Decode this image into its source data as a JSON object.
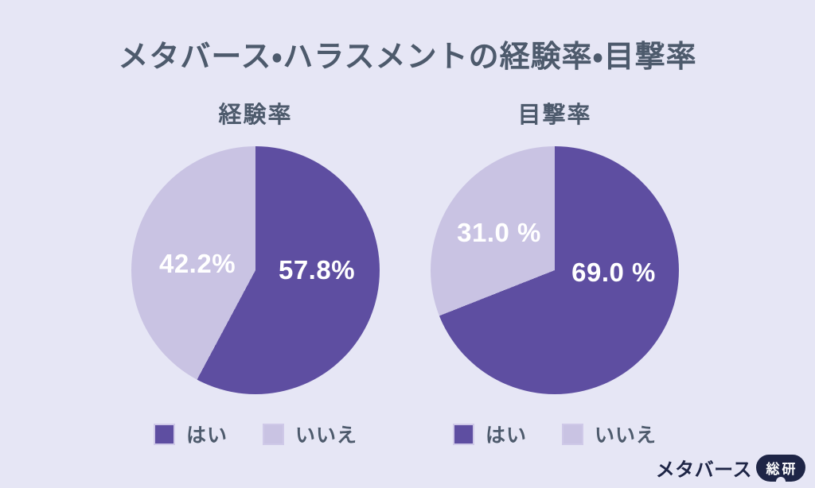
{
  "title": "メタバース・ハラスメントの経験率・目撃率",
  "charts": [
    {
      "subtitle": "経験率",
      "slices": [
        {
          "label": "はい",
          "value": 57.8,
          "display": "57.8%",
          "color": "#5e4ea1"
        },
        {
          "label": "いいえ",
          "value": 42.2,
          "display": "42.2%",
          "color": "#c9c3e3"
        }
      ]
    },
    {
      "subtitle": "目撃率",
      "slices": [
        {
          "label": "はい",
          "value": 69.0,
          "display": "69.0 %",
          "color": "#5e4ea1"
        },
        {
          "label": "いいえ",
          "value": 31.0,
          "display": "31.0 %",
          "color": "#c9c3e3"
        }
      ]
    }
  ],
  "chart_data": [
    {
      "type": "pie",
      "title": "経験率",
      "categories": [
        "はい",
        "いいえ"
      ],
      "values": [
        57.8,
        42.2
      ],
      "labels": [
        "57.8%",
        "42.2%"
      ],
      "colors": [
        "#5e4ea1",
        "#c9c3e3"
      ],
      "start_angle_deg": 0,
      "direction": "clockwise",
      "legend_position": "bottom"
    },
    {
      "type": "pie",
      "title": "目撃率",
      "categories": [
        "はい",
        "いいえ"
      ],
      "values": [
        69.0,
        31.0
      ],
      "labels": [
        "69.0 %",
        "31.0 %"
      ],
      "colors": [
        "#5e4ea1",
        "#c9c3e3"
      ],
      "start_angle_deg": 0,
      "direction": "clockwise",
      "legend_position": "bottom"
    }
  ],
  "logo": {
    "text": "メタバース",
    "badge": "総研"
  },
  "colors": {
    "background": "#e6e6f5",
    "accent_dark_purple": "#5e4ea1",
    "accent_light_lavender": "#c9c3e3",
    "heading_text": "#4d5a6c",
    "logo_navy": "#1e2546",
    "slice_label_text": "#ffffff"
  }
}
